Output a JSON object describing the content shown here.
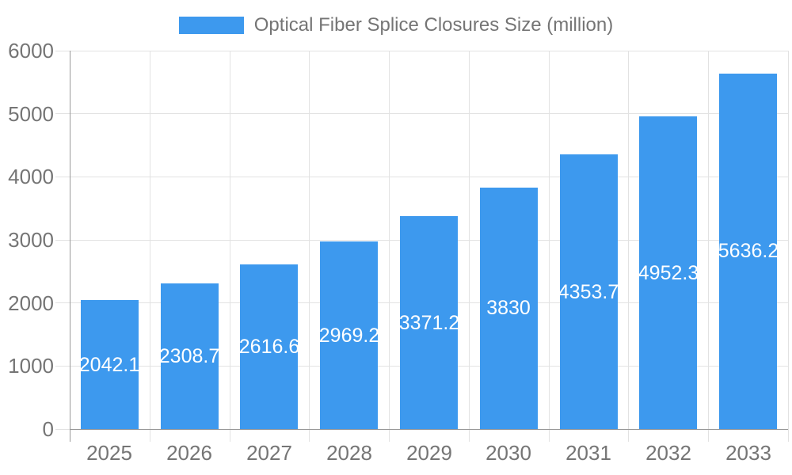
{
  "chart_data": {
    "type": "bar",
    "title": "Optical Fiber Splice Closures Size (million)",
    "categories": [
      "2025",
      "2026",
      "2027",
      "2028",
      "2029",
      "2030",
      "2031",
      "2032",
      "2033"
    ],
    "values": [
      2042.1,
      2308.7,
      2616.6,
      2969.2,
      3371.2,
      3830,
      4353.7,
      4952.3,
      5636.2
    ],
    "bar_labels": [
      "2042.1",
      "2308.7",
      "2616.6",
      "2969.2",
      "3371.2",
      "3830",
      "4353.7",
      "4952.3",
      "5636.2"
    ],
    "xlabel": "",
    "ylabel": "",
    "ylim": [
      0,
      6000
    ],
    "ytick_labels": [
      "0",
      "1000",
      "2000",
      "3000",
      "4000",
      "5000",
      "6000"
    ],
    "grid": true,
    "legend_position": "top",
    "legend_items": [
      {
        "label": "Optical Fiber Splice Closures Size (million)",
        "swatch_color": "#3d99ee"
      }
    ],
    "colors": {
      "bar": "#3d99ee",
      "value_label": "#ffffff",
      "axis_text": "#757575",
      "grid_line": "#e2e2e2",
      "axis_line": "#999999"
    }
  }
}
